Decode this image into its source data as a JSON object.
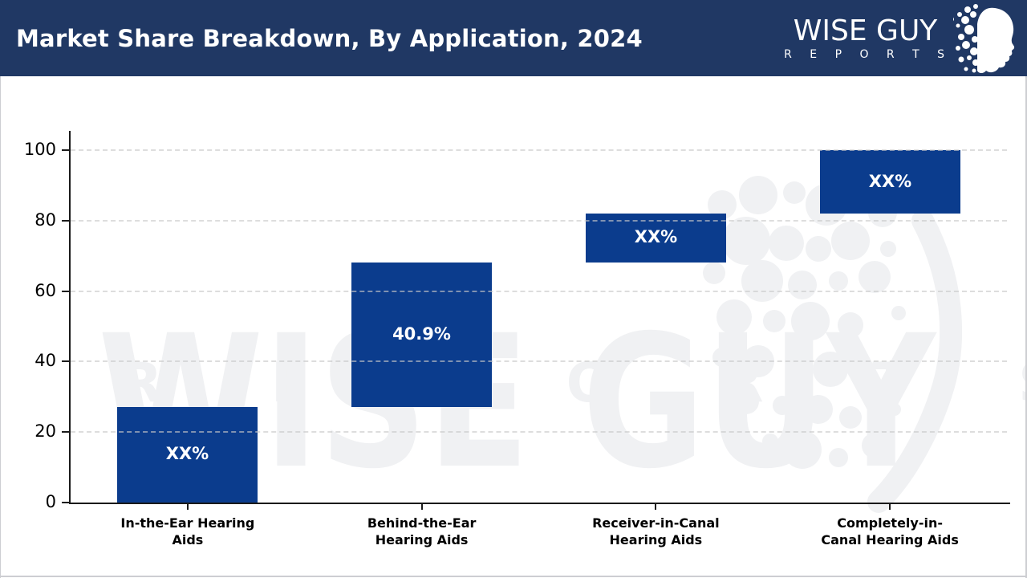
{
  "header": {
    "title": "Market Share Breakdown, By Application, 2024",
    "bg_color": "#203864",
    "logo": {
      "brand_top": "WISE GUY",
      "brand_bottom": "R E P O R T S"
    }
  },
  "watermark": {
    "line1": "WISE GUY",
    "line2": "R E P O R T S"
  },
  "colors": {
    "header_navy": "#203864",
    "bar_blue": "#0b3c8d",
    "grid_gray": "#dcdcdc",
    "watermark_gray": "#f0f1f3",
    "axis_black": "#1a1a1a"
  },
  "chart_data": {
    "type": "bar",
    "subtype": "floating_segment_waterfall",
    "title": "Market Share Breakdown, By Application, 2024",
    "unit": "%",
    "xlabel": "",
    "ylabel": "",
    "ylim": [
      0,
      100
    ],
    "y_ticks": [
      0,
      20,
      40,
      60,
      80,
      100
    ],
    "grid": {
      "horizontal": true,
      "style": "dashed"
    },
    "legend": "none",
    "bar_color": "#0b3c8d",
    "categories": [
      "In-the-Ear Hearing Aids",
      "Behind-the-Ear Hearing Aids",
      "Receiver-in-Canal Hearing Aids",
      "Completely-in-Canal Hearing Aids"
    ],
    "category_display": [
      "In-the-Ear Hearing\nAids",
      "Behind-the-Ear\nHearing Aids",
      "Receiver-in-Canal\nHearing Aids",
      "Completely-in-\nCanal Hearing Aids"
    ],
    "bars": [
      {
        "label": "XX%",
        "from": 0,
        "to": 27.2
      },
      {
        "label": "40.9%",
        "from": 27.2,
        "to": 68.1
      },
      {
        "label": "XX%",
        "from": 68.1,
        "to": 82.1
      },
      {
        "label": "XX%",
        "from": 82.0,
        "to": 100.0
      }
    ]
  }
}
